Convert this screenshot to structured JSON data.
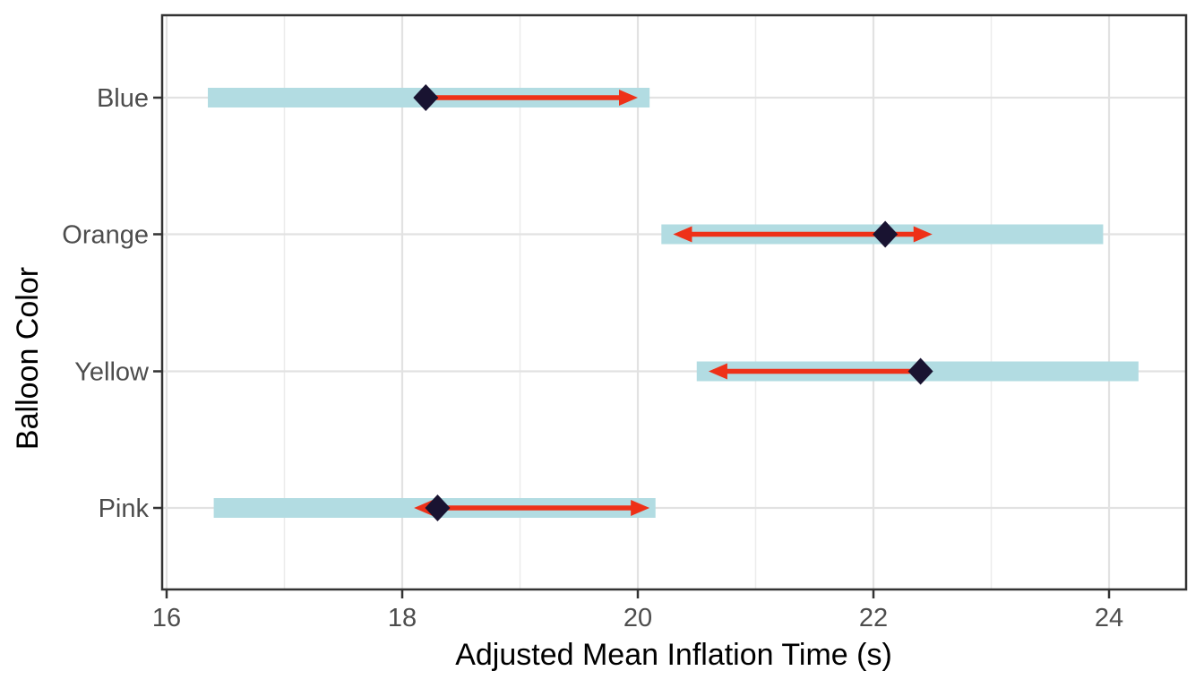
{
  "chart_data": {
    "type": "bar",
    "variant": "horizontal-interval-comparison",
    "title": "",
    "xlabel": "Adjusted Mean Inflation Time (s)",
    "ylabel": "Balloon Color",
    "xlim": [
      15.95,
      24.65
    ],
    "x_ticks": [
      16,
      18,
      20,
      22,
      24
    ],
    "x_minor_gridlines": [
      17,
      19,
      21,
      23
    ],
    "grid": "on",
    "legend": "none",
    "categories": [
      "Blue",
      "Orange",
      "Yellow",
      "Pink"
    ],
    "series": [
      {
        "name": "interval-bar",
        "ranges": [
          [
            16.35,
            20.1
          ],
          [
            20.2,
            23.95
          ],
          [
            20.5,
            24.25
          ],
          [
            16.4,
            20.15
          ]
        ]
      },
      {
        "name": "comparison-arrow",
        "ranges": [
          [
            18.2,
            20.0
          ],
          [
            20.3,
            22.5
          ],
          [
            20.6,
            22.4
          ],
          [
            18.1,
            20.1
          ]
        ],
        "arrowheads": [
          [
            "right"
          ],
          [
            "left",
            "right"
          ],
          [
            "left"
          ],
          [
            "left",
            "right"
          ]
        ]
      },
      {
        "name": "adjusted-mean",
        "marker": "diamond",
        "values": [
          18.2,
          22.1,
          22.4,
          18.3
        ]
      }
    ],
    "colors": {
      "interval_bar": "#B2DCE2",
      "comparison_arrow": "#EE3118",
      "mean_diamond": "#191331",
      "gridline_major": "#E2E2E2",
      "gridline_minor": "#ECECEC",
      "panel_border": "#333333",
      "tick_label": "#4D4D4D",
      "axis_title": "#000000",
      "background": "#FFFFFF"
    }
  }
}
